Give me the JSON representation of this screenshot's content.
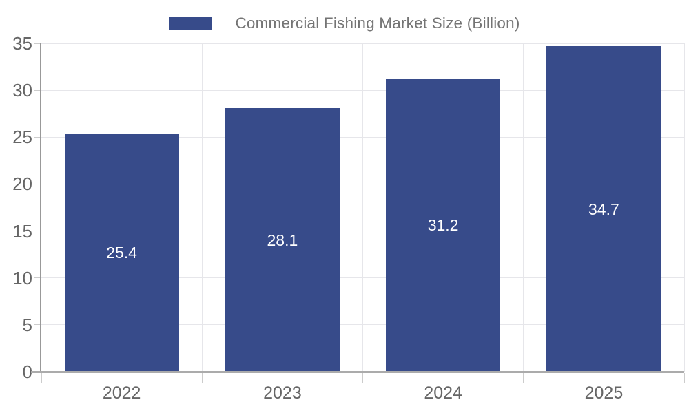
{
  "chart_data": {
    "type": "bar",
    "title": "Commercial Fishing Market Size (Billion)",
    "legend": {
      "label": "Commercial Fishing Market Size (Billion)",
      "position": "top"
    },
    "categories": [
      "2022",
      "2023",
      "2024",
      "2025"
    ],
    "values": [
      25.4,
      28.1,
      31.2,
      34.7
    ],
    "data_labels": [
      "25.4",
      "28.1",
      "31.2",
      "34.7"
    ],
    "xlabel": "",
    "ylabel": "",
    "ylim": [
      0,
      35
    ],
    "yticks": [
      0,
      5,
      10,
      15,
      20,
      25,
      30,
      35
    ],
    "grid": true,
    "colors": {
      "bar": "#374B8A",
      "bar_label_text": "#ffffff",
      "legend_text": "#747474",
      "axis_text": "#666666",
      "gridline": "#e6e6ea",
      "tick_mark": "#cccccc",
      "x_axis_line": "#ababab",
      "y_axis_line": "#999999"
    }
  }
}
